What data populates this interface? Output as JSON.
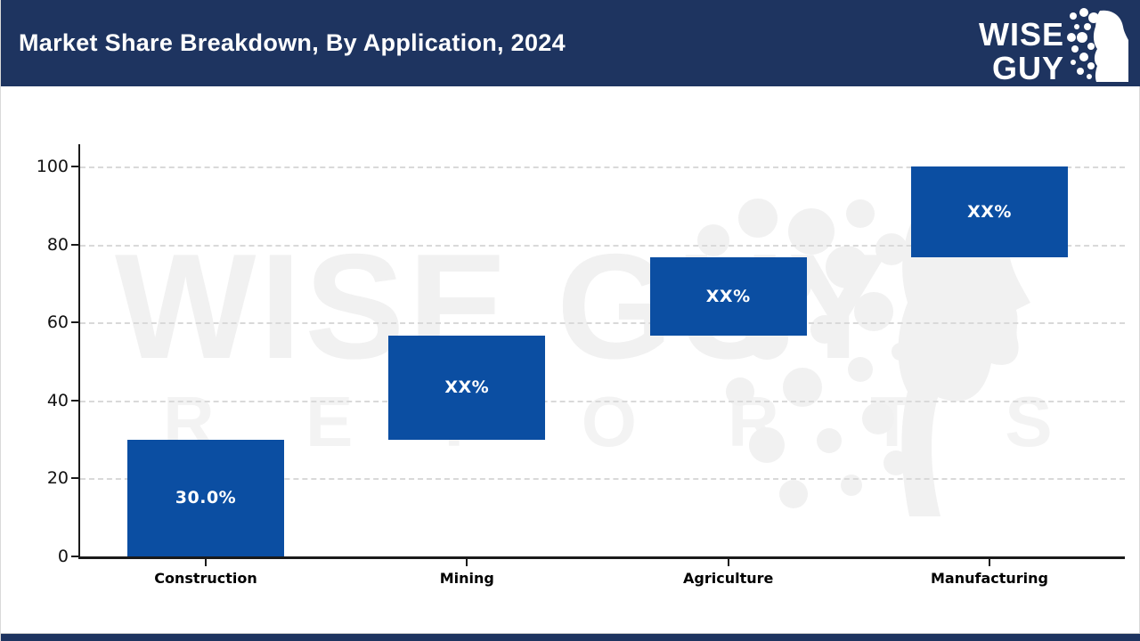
{
  "header": {
    "title": "Market Share Breakdown, By Application, 2024",
    "bg_color": "#1e3460",
    "logo": {
      "line1": "WISE GUY",
      "line2": "REPORTS"
    }
  },
  "watermark": {
    "line1": "WISE GUY",
    "line2": "REPORTS"
  },
  "chart_data": {
    "type": "bar",
    "subtype": "floating-waterfall",
    "title": "Market Share Breakdown, By Application, 2024",
    "categories": [
      "Construction",
      "Mining",
      "Agriculture",
      "Manufacturing"
    ],
    "segments": [
      {
        "category": "Construction",
        "start": 0,
        "end": 30,
        "label": "30.0%"
      },
      {
        "category": "Mining",
        "start": 30,
        "end": 56.7,
        "label": "XX%"
      },
      {
        "category": "Agriculture",
        "start": 56.7,
        "end": 76.8,
        "label": "XX%"
      },
      {
        "category": "Manufacturing",
        "start": 76.8,
        "end": 100,
        "label": "XX%"
      }
    ],
    "yticks": [
      0,
      20,
      40,
      60,
      80,
      100
    ],
    "ylim": [
      0,
      105.5
    ],
    "xlabel": "",
    "ylabel": "",
    "grid": "horizontal-dashed",
    "legend": "none",
    "bar_color": "#0b4ea2",
    "bar_label_color": "#ffffff",
    "gridline_color": "#d9d9d9",
    "axis_color": "#1a1a1a"
  }
}
